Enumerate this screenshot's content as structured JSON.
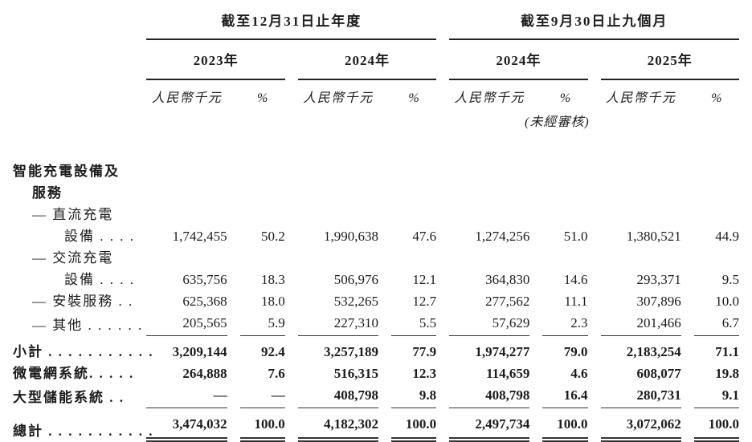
{
  "page": {
    "background": "#ffffff",
    "text_color": "#1c1c1c",
    "rule_color": "#2a2a2a"
  },
  "table": {
    "groups": [
      {
        "title": "截至12月31日止年度",
        "years": [
          "2023年",
          "2024年"
        ]
      },
      {
        "title": "截至9月30日止九個月",
        "years": [
          "2024年",
          "2025年"
        ]
      }
    ],
    "amount_header": "人民幣千元",
    "percent_header": "%",
    "unaudited_note": "(未經審核)",
    "rows": [
      {
        "label": "智能充電設備及",
        "bold": true,
        "indent": 0,
        "values": []
      },
      {
        "label": "服務",
        "bold": true,
        "indent": 1,
        "values": []
      },
      {
        "label": "— 直流充電",
        "bold": false,
        "indent": 1,
        "values": []
      },
      {
        "label": "設備 . . . .",
        "bold": false,
        "indent": 2,
        "values": [
          "1,742,455",
          "50.2",
          "1,990,638",
          "47.6",
          "1,274,256",
          "51.0",
          "1,380,521",
          "44.9"
        ]
      },
      {
        "label": "— 交流充電",
        "bold": false,
        "indent": 1,
        "values": []
      },
      {
        "label": "設備 . . . .",
        "bold": false,
        "indent": 2,
        "values": [
          "635,756",
          "18.3",
          "506,976",
          "12.1",
          "364,830",
          "14.6",
          "293,371",
          "9.5"
        ]
      },
      {
        "label": "— 安裝服務 . .",
        "bold": false,
        "indent": 1,
        "values": [
          "625,368",
          "18.0",
          "532,265",
          "12.7",
          "277,562",
          "11.1",
          "307,896",
          "10.0"
        ]
      },
      {
        "label": "— 其他 . . . . . .",
        "bold": false,
        "indent": 1,
        "values": [
          "205,565",
          "5.9",
          "227,310",
          "5.5",
          "57,629",
          "2.3",
          "201,466",
          "6.7"
        ],
        "rule_below": "single"
      },
      {
        "label": "小計 . . . . . . . . . . .",
        "bold": true,
        "indent": 0,
        "values": [
          "3,209,144",
          "92.4",
          "3,257,189",
          "77.9",
          "1,974,277",
          "79.0",
          "2,183,254",
          "71.1"
        ]
      },
      {
        "label": "微電網系統. . . . .",
        "bold": true,
        "indent": 0,
        "values": [
          "264,888",
          "7.6",
          "516,315",
          "12.3",
          "114,659",
          "4.6",
          "608,077",
          "19.8"
        ]
      },
      {
        "label": "大型儲能系統 . .",
        "bold": true,
        "indent": 0,
        "values": [
          "—",
          "—",
          "408,798",
          "9.8",
          "408,798",
          "16.4",
          "280,731",
          "9.1"
        ],
        "rule_below": "single"
      },
      {
        "label": "總計 . . . . . . . . . . .",
        "bold": true,
        "indent": 0,
        "values": [
          "3,474,032",
          "100.0",
          "4,182,302",
          "100.0",
          "2,497,734",
          "100.0",
          "3,072,062",
          "100.0"
        ],
        "rule_below": "double"
      }
    ]
  }
}
